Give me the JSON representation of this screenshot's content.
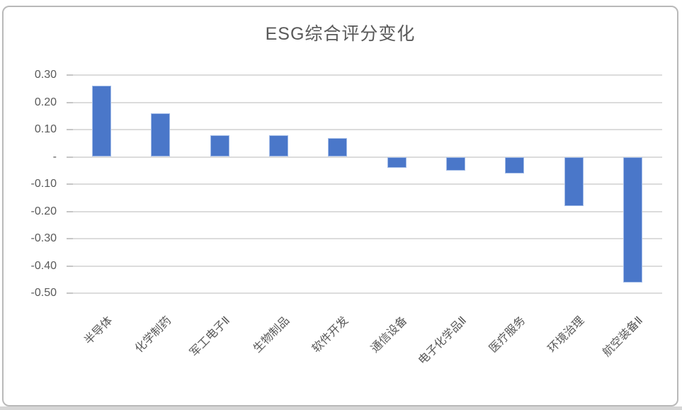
{
  "chart_data": {
    "type": "bar",
    "title": "ESG综合评分变化",
    "categories": [
      "半导体",
      "化学制药",
      "军工电子Ⅱ",
      "生物制品",
      "软件开发",
      "通信设备",
      "电子化学品Ⅱ",
      "医疗服务",
      "环境治理",
      "航空装备Ⅱ"
    ],
    "values": [
      0.26,
      0.16,
      0.08,
      0.08,
      0.07,
      -0.04,
      -0.05,
      -0.06,
      -0.18,
      -0.46
    ],
    "xlabel": "",
    "ylabel": "",
    "ylim": [
      -0.5,
      0.3
    ],
    "y_ticks": [
      {
        "label": "0.30",
        "value": 0.3
      },
      {
        "label": "0.20",
        "value": 0.2
      },
      {
        "label": "0.10",
        "value": 0.1
      },
      {
        "label": "-",
        "value": 0
      },
      {
        "label": "-0.10",
        "value": -0.1
      },
      {
        "label": "-0.20",
        "value": -0.2
      },
      {
        "label": "-0.30",
        "value": -0.3
      },
      {
        "label": "-0.40",
        "value": -0.4
      },
      {
        "label": "-0.50",
        "value": -0.5
      }
    ],
    "grid": true,
    "legend": false,
    "bar_color": "#4a77c9",
    "bar_border_color": "#a3bce8",
    "gridline_color": "#dcdcdc",
    "tick_color": "#c6c6c6",
    "axis_text_color": "#595959",
    "title_color": "#595959"
  }
}
